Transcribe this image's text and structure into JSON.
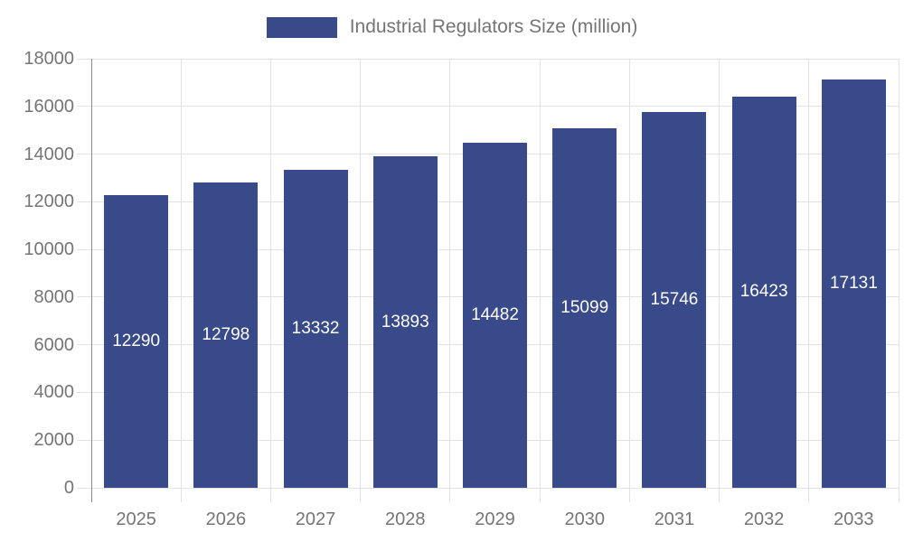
{
  "legend": {
    "label": "Industrial Regulators Size (million)",
    "swatch_color": "#394A8A"
  },
  "chart_data": {
    "type": "bar",
    "title": "Industrial Regulators Size (million)",
    "series_name": "Industrial Regulators Size (million)",
    "categories": [
      "2025",
      "2026",
      "2027",
      "2028",
      "2029",
      "2030",
      "2031",
      "2032",
      "2033"
    ],
    "values": [
      12290,
      12798,
      13332,
      13893,
      14482,
      15099,
      15746,
      16423,
      17131
    ],
    "value_labels": [
      "12290",
      "12798",
      "13332",
      "13893",
      "14482",
      "15099",
      "15746",
      "16423",
      "17131"
    ],
    "xlabel": "",
    "ylabel": "",
    "ylim": [
      0,
      18000
    ],
    "ytick_step": 2000,
    "yticks": [
      0,
      2000,
      4000,
      6000,
      8000,
      10000,
      12000,
      14000,
      16000,
      18000
    ],
    "grid": true,
    "legend_position": "top",
    "bar_color": "#394A8A",
    "value_label_color": "#ffffff",
    "axis_text_color": "#757575",
    "grid_color": "#e2e2e2",
    "axis_line_color": "#8a8a8a",
    "background_color": "#ffffff"
  }
}
